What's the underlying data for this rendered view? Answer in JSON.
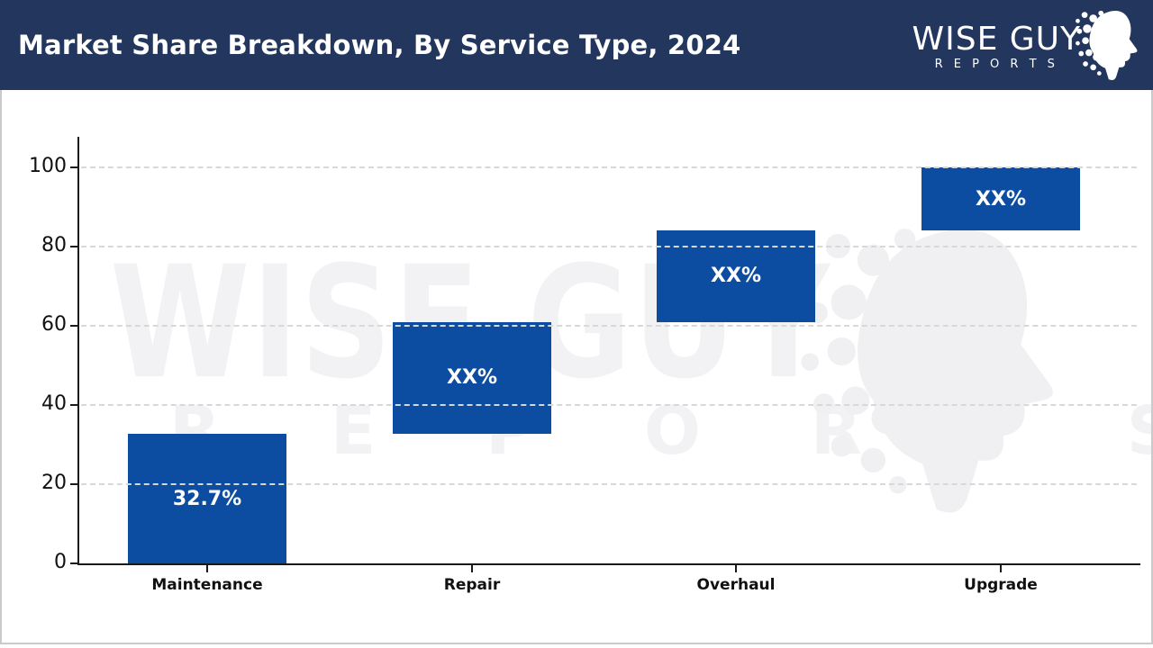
{
  "header": {
    "title": "Market Share Breakdown, By Service Type, 2024",
    "logo": {
      "name": "WISE GUY",
      "sub": "R E P O R T S"
    }
  },
  "watermark": {
    "line1": "WISE GUY",
    "line2": "R E P O R T S"
  },
  "chart_data": {
    "type": "bar",
    "subtype": "waterfall",
    "title": "Market Share Breakdown, By Service Type, 2024",
    "categories": [
      "Maintenance",
      "Repair",
      "Overhaul",
      "Upgrade"
    ],
    "segments": [
      {
        "category": "Maintenance",
        "from": 0,
        "to": 32.7,
        "label": "32.7%"
      },
      {
        "category": "Repair",
        "from": 32.7,
        "to": 61,
        "label": "XX%"
      },
      {
        "category": "Overhaul",
        "from": 61,
        "to": 84,
        "label": "XX%"
      },
      {
        "category": "Upgrade",
        "from": 84,
        "to": 100,
        "label": "XX%"
      }
    ],
    "yticks": [
      0,
      20,
      40,
      60,
      80,
      100
    ],
    "ylim": [
      0,
      105
    ],
    "xlabel": "",
    "ylabel": "",
    "grid": "dashed-horizontal",
    "legend": "none",
    "bar_color": "#0c4da1",
    "bar_label_color": "#ffffff"
  },
  "colors": {
    "header_bg": "#22365e",
    "bar": "#0c4da1",
    "grid": "#d8d8d8",
    "axis": "#1a1a1a",
    "watermark": "#f2f2f4",
    "frame_border": "#cacaca"
  }
}
